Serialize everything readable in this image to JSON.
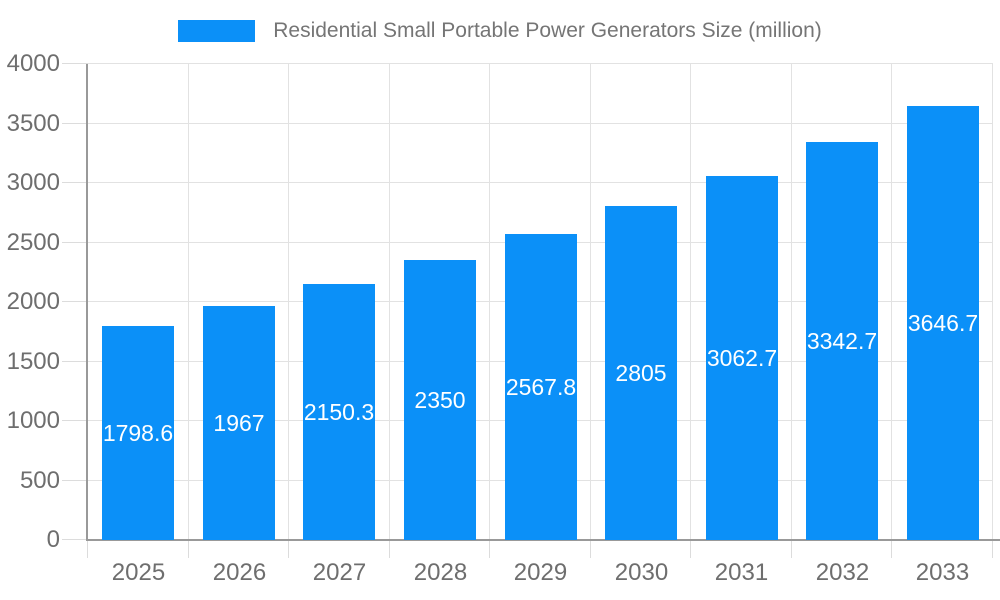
{
  "chart_data": {
    "type": "bar",
    "title": "Residential Small Portable Power Generators Size (million)",
    "categories": [
      "2025",
      "2026",
      "2027",
      "2028",
      "2029",
      "2030",
      "2031",
      "2032",
      "2033"
    ],
    "values": [
      1798.6,
      1967,
      2150.3,
      2350,
      2567.8,
      2805,
      3062.7,
      3342.7,
      3646.7
    ],
    "value_labels": [
      "1798.6",
      "1967",
      "2150.3",
      "2350",
      "2567.8",
      "2805",
      "3062.7",
      "3342.7",
      "3646.7"
    ],
    "xlabel": "",
    "ylabel": "",
    "ylim": [
      0,
      4000
    ],
    "y_ticks": [
      0,
      500,
      1000,
      1500,
      2000,
      2500,
      3000,
      3500,
      4000
    ],
    "grid": true,
    "legend_position": "top-center",
    "bar_label_position": "inside-center",
    "colors": {
      "bar": "#0b90f8",
      "bar_label": "#ffffff",
      "axis_line": "#999999",
      "grid_line": "#e2e2e2",
      "tick_line": "#dcdcdc",
      "axis_text": "#6e6e6e",
      "title_text": "#757575",
      "background": "#ffffff"
    }
  }
}
